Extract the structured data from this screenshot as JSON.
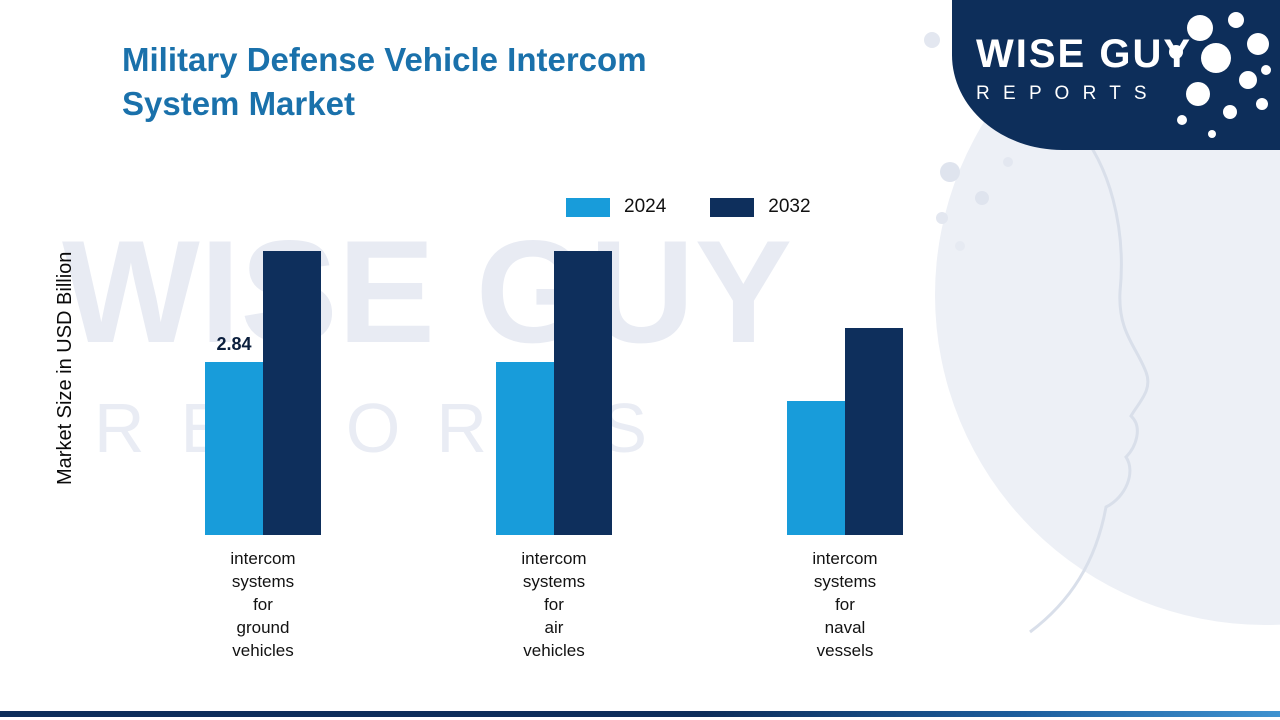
{
  "page": {
    "title": "Military Defense Vehicle Intercom System Market",
    "ylabel": "Market Size in USD Billion"
  },
  "legend": {
    "items": [
      {
        "label": "2024",
        "color": "#189cda"
      },
      {
        "label": "2032",
        "color": "#0e2f5c"
      }
    ]
  },
  "chart_data": {
    "type": "bar",
    "title": "Military Defense Vehicle Intercom System Market",
    "ylabel": "Market Size in USD Billion",
    "ylim": [
      0,
      5
    ],
    "grid": false,
    "legend_position": "top",
    "categories": [
      "intercom\nsystems\nfor\nground\nvehicles",
      "intercom\nsystems\nfor\nair\nvehicles",
      "intercom\nsystems\nfor\nnaval\nvessels"
    ],
    "series": [
      {
        "name": "2024",
        "color": "#189cda",
        "values": [
          2.84,
          2.84,
          2.2
        ]
      },
      {
        "name": "2032",
        "color": "#0e2f5c",
        "values": [
          4.65,
          4.65,
          3.4
        ]
      }
    ],
    "annotations": [
      {
        "series": "2024",
        "category_index": 0,
        "text": "2.84"
      }
    ]
  },
  "logo": {
    "name": "WISE GUY",
    "tagline": "R E P O R T S"
  },
  "watermark": {
    "line1": "WISE GUY",
    "line2": "REPORTS"
  },
  "colors": {
    "title": "#1a71ab",
    "bar_2024": "#189cda",
    "bar_2032": "#0e2f5c",
    "logo_background": "#0d2e5a",
    "accent_bar_end": "#3f93d0",
    "watermark": "#e8ebf3"
  }
}
